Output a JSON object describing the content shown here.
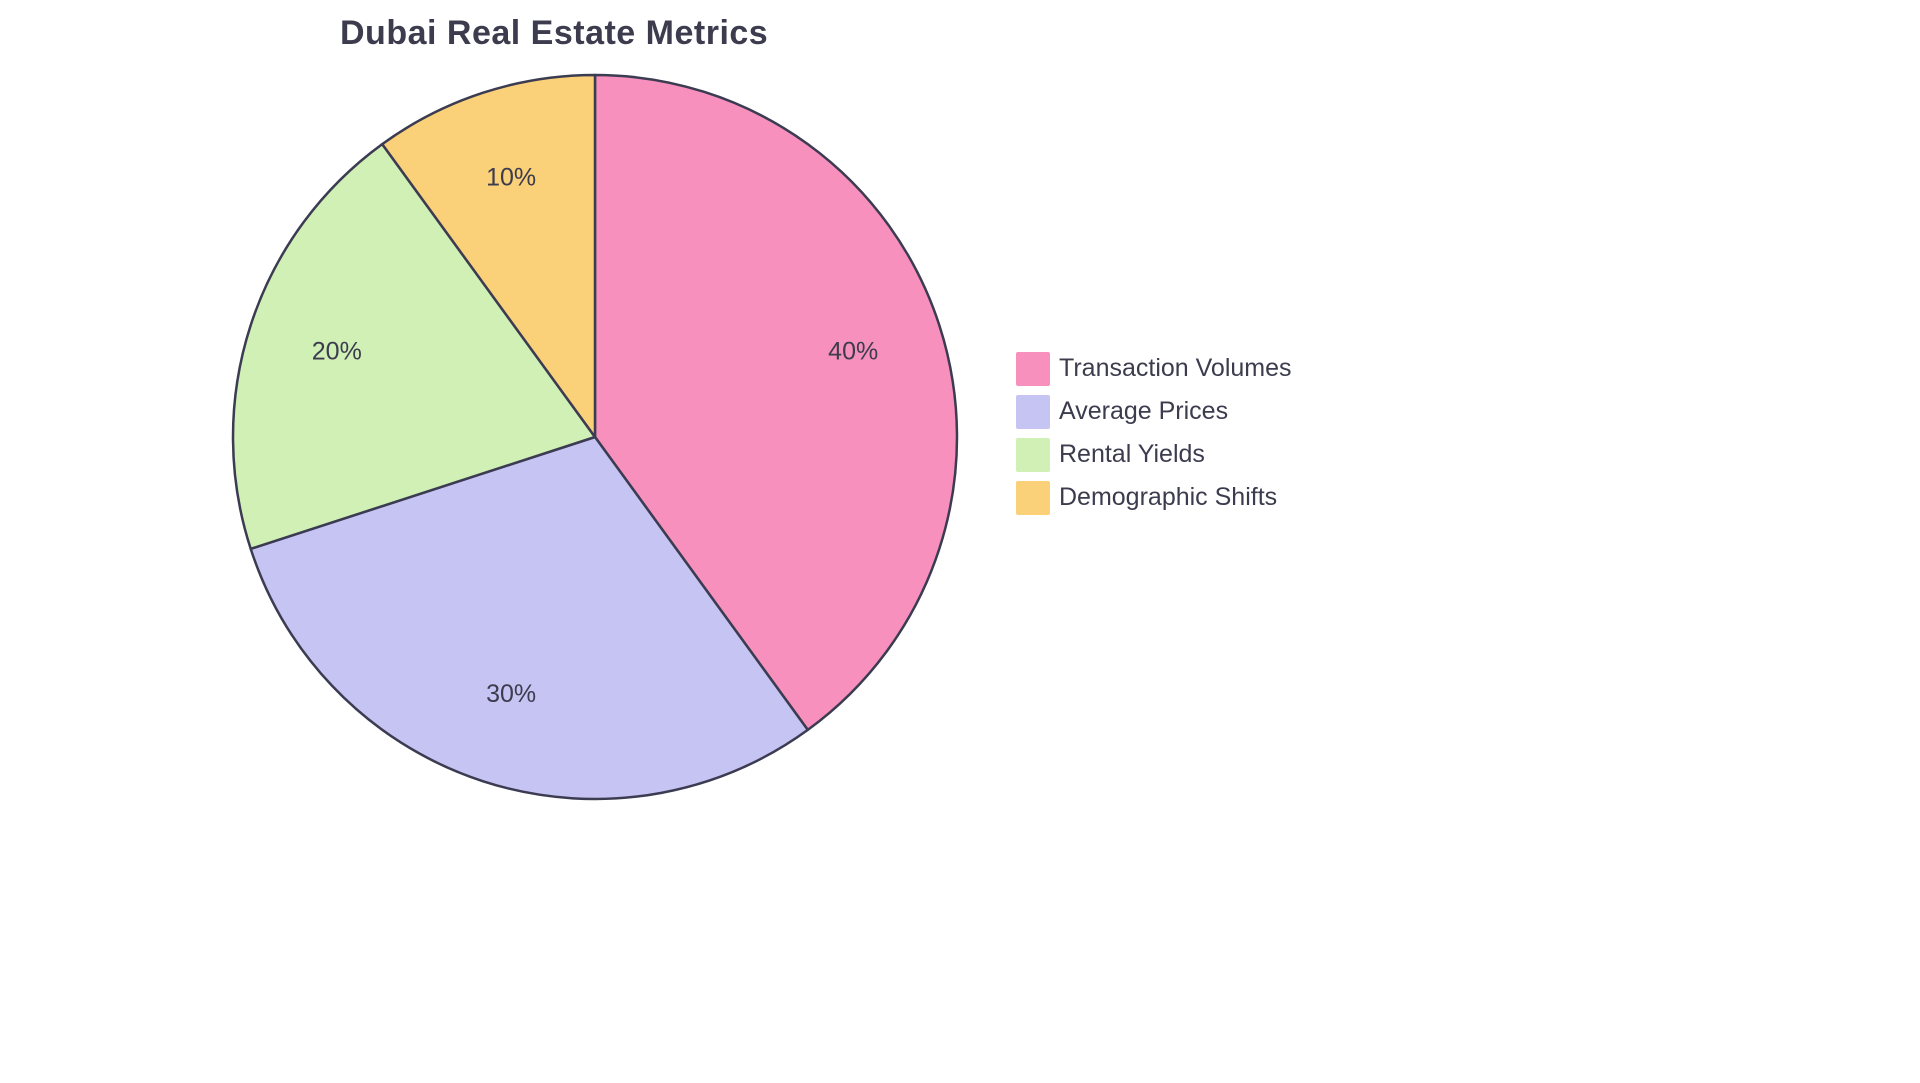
{
  "chart_data": {
    "type": "pie",
    "title": "Dubai Real Estate Metrics",
    "labels": [
      "Transaction Volumes",
      "Average Prices",
      "Rental Yields",
      "Demographic Shifts"
    ],
    "values": [
      40,
      30,
      20,
      10
    ],
    "slice_labels": [
      "40%",
      "30%",
      "20%",
      "10%"
    ],
    "colors": [
      "#F890BD",
      "#C6C4F2",
      "#D0F0B5",
      "#FAD078"
    ],
    "stroke_color": "#3B3B52",
    "text_color": "#3C3C4E",
    "title_color": "#3C3C4E",
    "start_angle": "top",
    "direction": "clockwise",
    "legend_position": "right",
    "grid": false
  }
}
